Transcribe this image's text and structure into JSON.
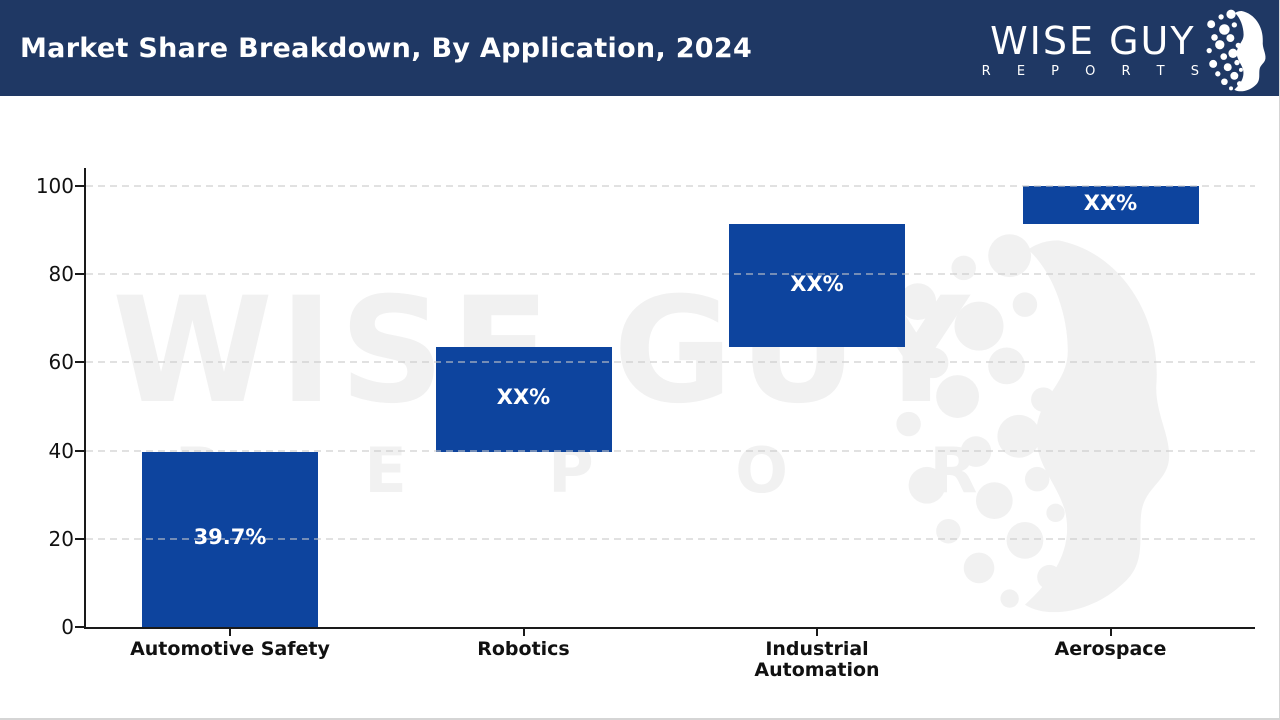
{
  "header": {
    "title": "Market Share Breakdown, By Application, 2024",
    "logo": {
      "line1": "WISE GUY",
      "line2": "R E P O R T S"
    }
  },
  "watermark": {
    "line1": "WISE GUY",
    "line2": "R E P O R T S"
  },
  "chart_data": {
    "type": "bar",
    "subtype": "floating-waterfall",
    "title": "Market Share Breakdown, By Application, 2024",
    "categories": [
      "Automotive Safety",
      "Robotics",
      "Industrial\nAutomation",
      "Aerospace"
    ],
    "segments": [
      {
        "category": "Automotive Safety",
        "start": 0,
        "end": 39.7,
        "label": "39.7%"
      },
      {
        "category": "Robotics",
        "start": 39.7,
        "end": 63.5,
        "label": "XX%"
      },
      {
        "category": "Industrial Automation",
        "start": 63.5,
        "end": 91.3,
        "label": "XX%"
      },
      {
        "category": "Aerospace",
        "start": 91.3,
        "end": 100,
        "label": "XX%"
      }
    ],
    "yticks": [
      0,
      20,
      40,
      60,
      80,
      100
    ],
    "ylim": [
      0,
      107
    ],
    "xlabel": "",
    "ylabel": "",
    "grid": "horizontal-dashed",
    "legend": "none",
    "bar_color": "#0d449e",
    "value_label_color": "#ffffff"
  },
  "colors": {
    "header_bg": "#1f3864",
    "bar": "#0d449e",
    "gridline": "#dcdcdc",
    "axis": "#1a1a1a",
    "watermark": "#f1f1f1"
  }
}
